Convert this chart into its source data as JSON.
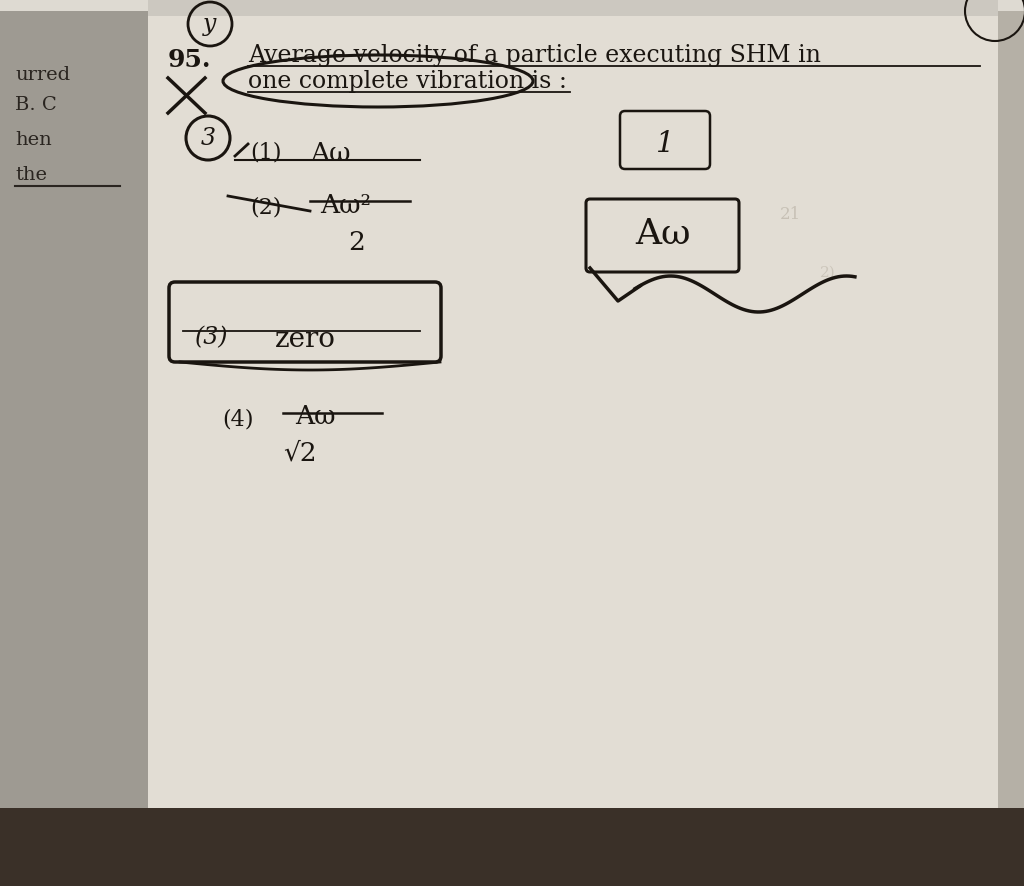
{
  "page_bg": "#dedad2",
  "spine_color": "#b8b3a8",
  "bottom_color": "#3a3028",
  "right_edge_color": "#c0bbb0",
  "margin_texts": [
    "urred",
    "B. C",
    "hen",
    "the"
  ],
  "q_num": "95.",
  "q_line1": "Average velocity of a particle executing SHM in",
  "q_line2": "one complete vibration is :",
  "opt1_num": "(1)",
  "opt1_text": "Aω",
  "opt2_num": "(2)",
  "opt2_num_text": "Aω²",
  "opt2_den_text": "2",
  "opt3_num": "(3)",
  "opt3_text": "zero",
  "opt4_num": "(4)",
  "opt4_num_text": "Aω",
  "opt4_den_text": "√2",
  "ans_box_text": "Aω",
  "ans_circle_text": "1",
  "tab_text": "y",
  "sidebar_num": "3",
  "ink_color": "#1a1510",
  "faint_color": "#8a8070"
}
